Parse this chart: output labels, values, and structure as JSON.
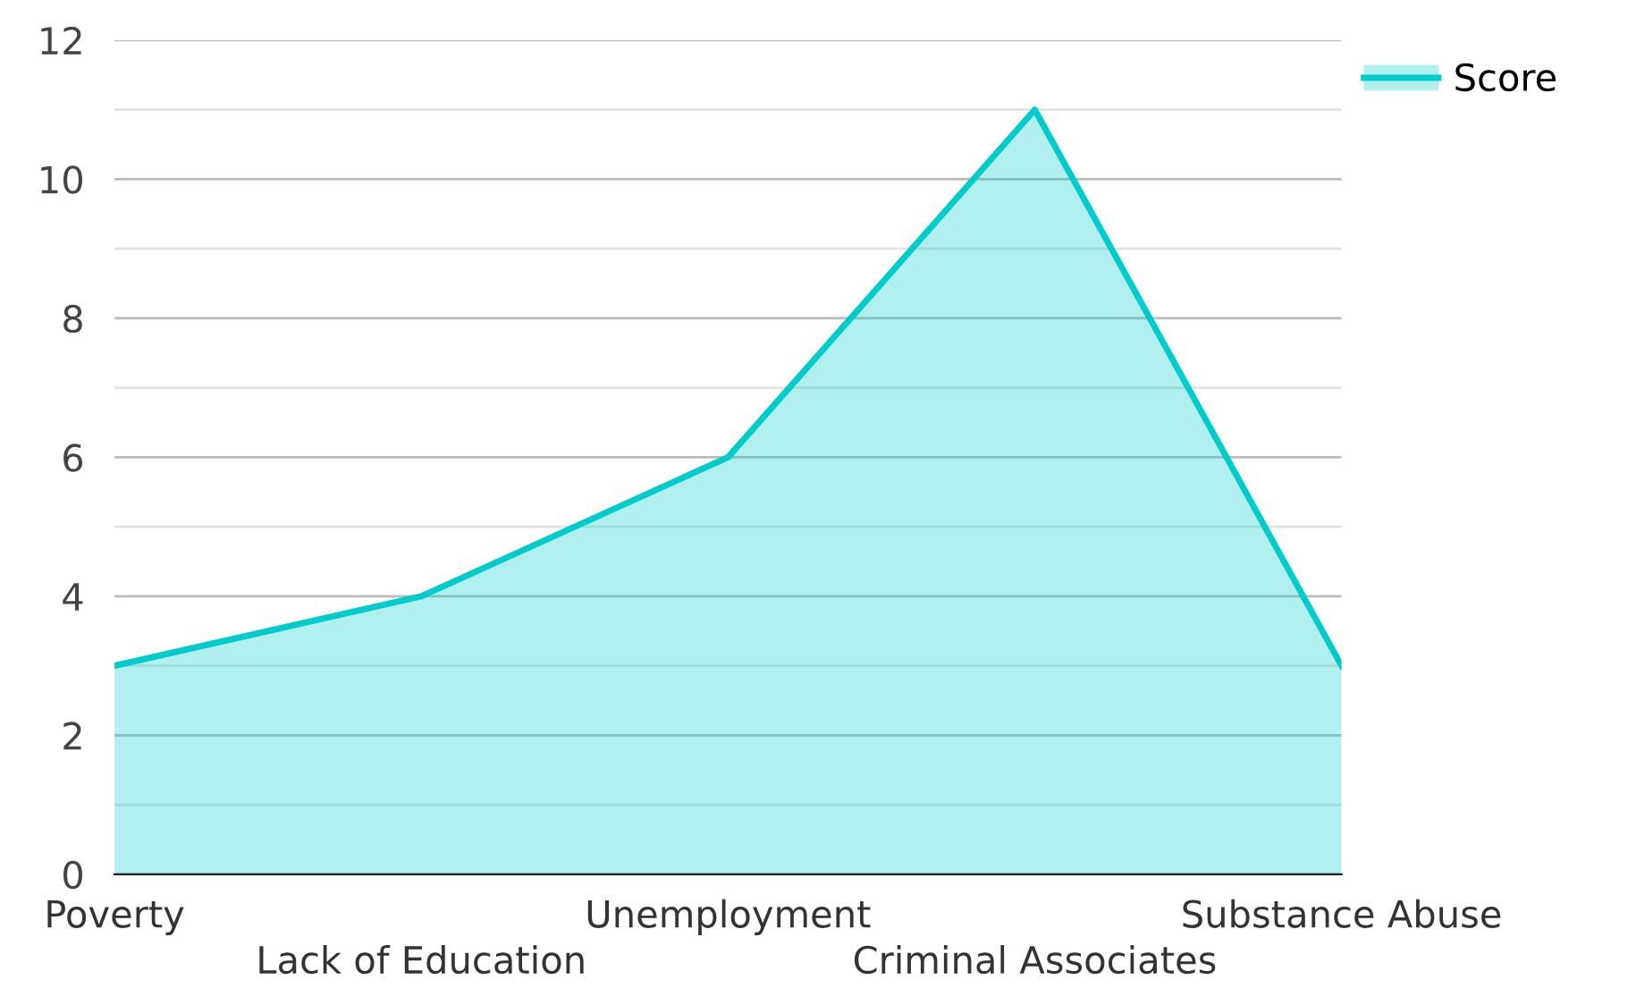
{
  "chart_data": {
    "type": "area",
    "categories": [
      "Poverty",
      "Lack of Education",
      "Unemployment",
      "Criminal Associates",
      "Substance Abuse"
    ],
    "series": [
      {
        "name": "Score",
        "color": "#00cccc",
        "values": [
          3,
          4,
          6,
          11,
          3
        ]
      }
    ],
    "ylim": [
      0,
      12
    ],
    "yticks": [
      0,
      {
        "value": 1,
        "label": null
      },
      2,
      {
        "value": 3,
        "label": null
      },
      4,
      {
        "value": 5,
        "label": null
      },
      6,
      {
        "value": 7,
        "label": null
      },
      8,
      {
        "value": 9,
        "label": null
      },
      10,
      {
        "value": 11,
        "label": null
      },
      12
    ],
    "grid": "y",
    "legend": "top right"
  }
}
